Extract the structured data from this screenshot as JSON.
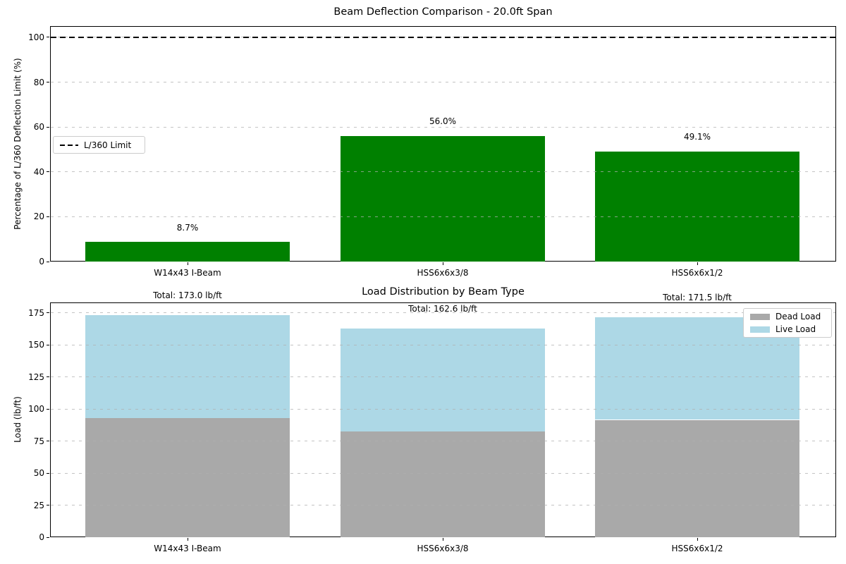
{
  "colors": {
    "background": "#ffffff",
    "axis": "#000000",
    "grid": "#b0b0b0",
    "green_bar": "#008000",
    "dead_load_gray": "#a9a9a9",
    "live_load_blue": "#add8e6",
    "ref_line_black": "#000000"
  },
  "chart_data": [
    {
      "type": "bar",
      "title": "Beam Deflection Comparison - 20.0ft Span",
      "ylabel": "Percentage of L/360 Deflection Limit (%)",
      "xlabel": "",
      "categories": [
        "W14x43 I-Beam",
        "HSS6x6x3/8",
        "HSS6x6x1/2"
      ],
      "values": [
        8.7,
        56.0,
        49.1
      ],
      "bar_labels": [
        "8.7%",
        "56.0%",
        "49.1%"
      ],
      "bar_color": "#008000",
      "ylim": [
        0,
        105
      ],
      "yticks": [
        0,
        20,
        40,
        60,
        80,
        100
      ],
      "grid": "horizontal-dashed",
      "ref_line": {
        "value": 100,
        "label": "L/360 Limit",
        "color": "#000000",
        "style": "dashed"
      },
      "legend_position": "center-left"
    },
    {
      "type": "bar",
      "stacked": true,
      "title": "Load Distribution by Beam Type",
      "ylabel": "Load (lb/ft)",
      "xlabel": "",
      "categories": [
        "W14x43 I-Beam",
        "HSS6x6x3/8",
        "HSS6x6x1/2"
      ],
      "series": [
        {
          "name": "Dead Load",
          "color": "#a9a9a9",
          "values": [
            93.0,
            82.6,
            91.5
          ]
        },
        {
          "name": "Live Load",
          "color": "#add8e6",
          "values": [
            80.0,
            80.0,
            80.0
          ]
        }
      ],
      "totals": [
        173.0,
        162.6,
        171.5
      ],
      "total_labels": [
        "Total: 173.0 lb/ft",
        "Total: 162.6 lb/ft",
        "Total: 171.5 lb/ft"
      ],
      "ylim": [
        0,
        183
      ],
      "yticks": [
        0,
        25,
        50,
        75,
        100,
        125,
        150,
        175
      ],
      "grid": "horizontal-dashed",
      "legend_position": "top-right"
    }
  ]
}
